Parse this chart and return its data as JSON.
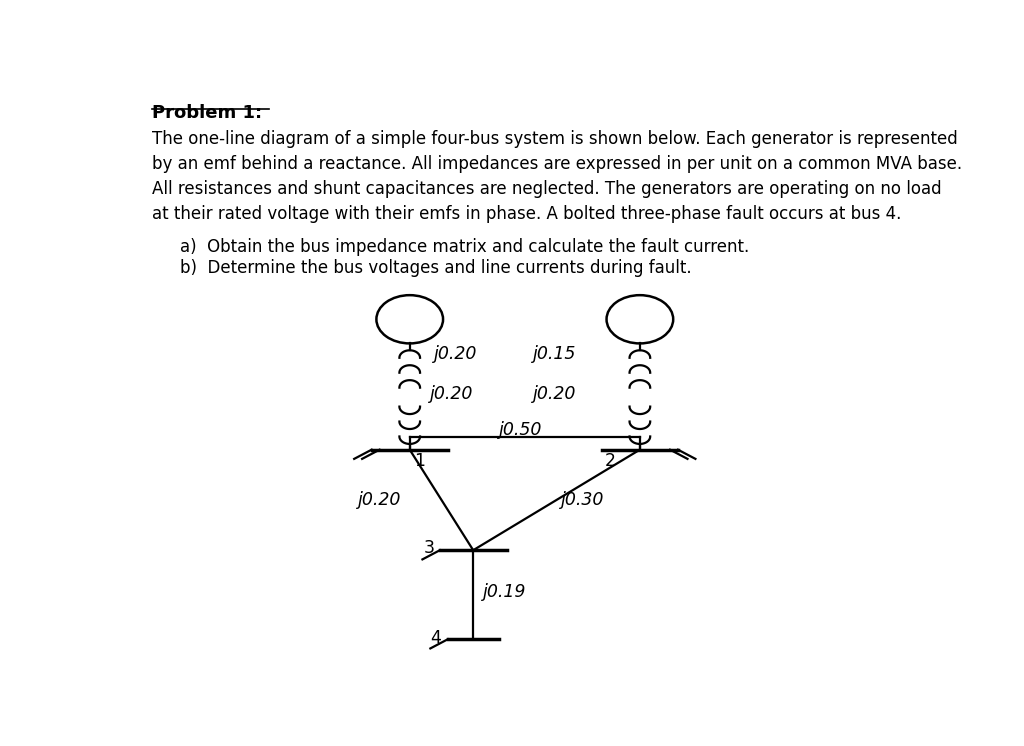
{
  "title": "Problem 1:",
  "paragraph": "The one-line diagram of a simple four-bus system is shown below. Each generator is represented\nby an emf behind a reactance. All impedances are expressed in per unit on a common MVA base.\nAll resistances and shunt capacitances are neglected. The generators are operating on no load\nat their rated voltage with their emfs in phase. A bolted three-phase fault occurs at bus 4.",
  "item_a": "a)  Obtain the bus impedance matrix and calculate the fault current.",
  "item_b": "b)  Determine the bus voltages and line currents during fault.",
  "bg_color": "#ffffff",
  "text_color": "#000000",
  "gen1_reactance_label": "j0.20",
  "gen2_reactance_label": "j0.15",
  "trans1_reactance_label": "j0.20",
  "trans2_reactance_label": "j0.20",
  "line12_label": "j0.50",
  "line13_label": "j0.20",
  "line23_label": "j0.30",
  "line34_label": "j0.19",
  "bus1_label": "1",
  "bus2_label": "2",
  "bus3_label": "3",
  "bus4_label": "4"
}
